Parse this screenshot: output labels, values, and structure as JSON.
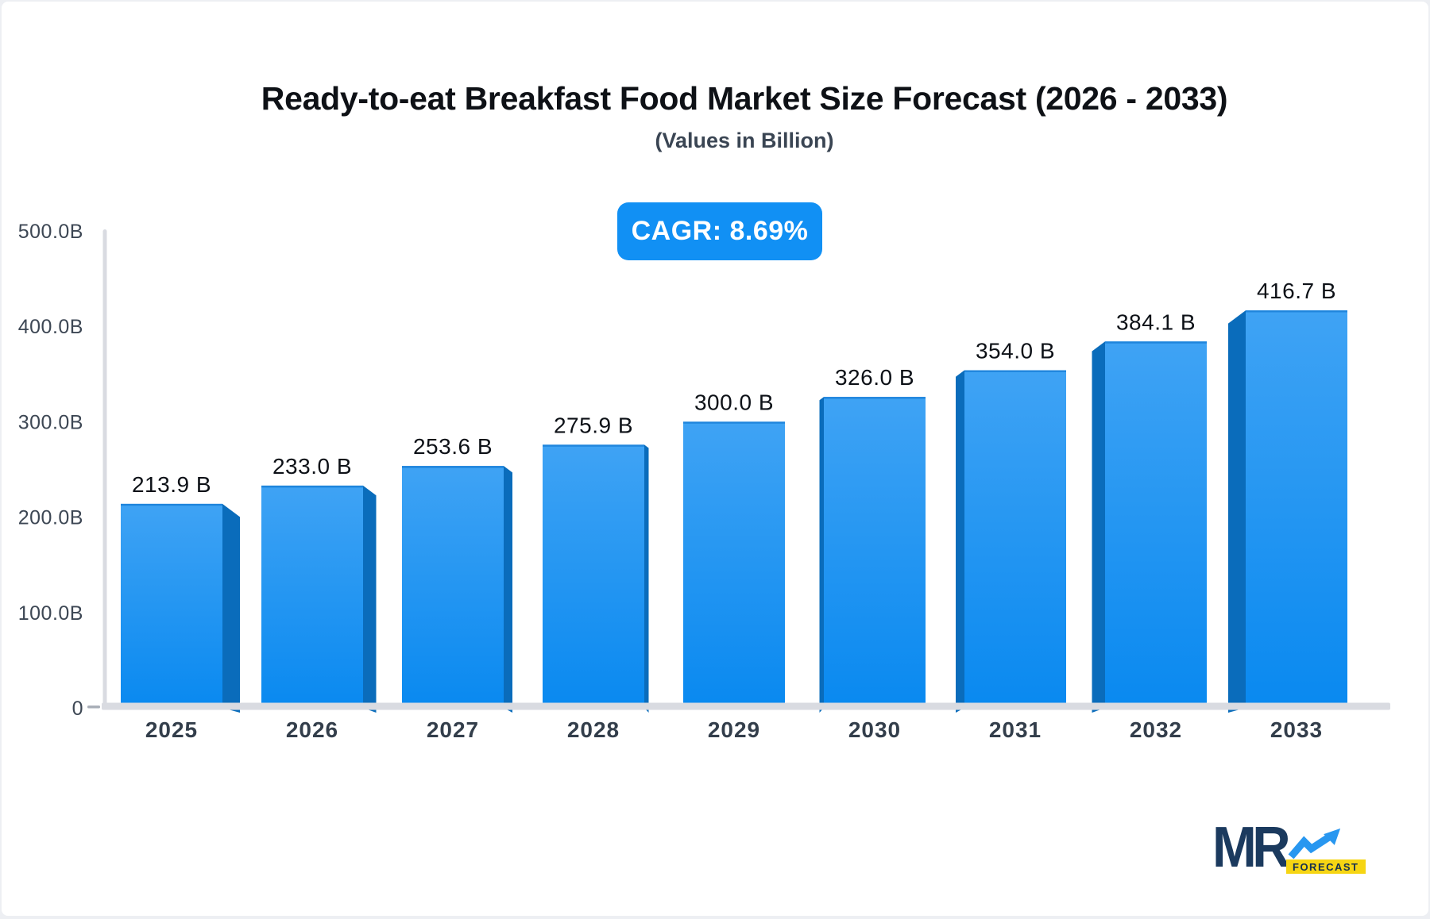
{
  "header": {
    "title": "Ready-to-eat Breakfast Food Market Size Forecast (2026 - 2033)",
    "subtitle": "(Values in Billion)"
  },
  "badge": {
    "label": "CAGR: 8.69%"
  },
  "chart_data": {
    "type": "bar",
    "title": "Ready-to-eat Breakfast Food Market Size Forecast (2026 - 2033)",
    "subtitle": "(Values in Billion)",
    "unit": "Billion",
    "cagr_percent": 8.69,
    "categories": [
      "2025",
      "2026",
      "2027",
      "2028",
      "2029",
      "2030",
      "2031",
      "2032",
      "2033"
    ],
    "values": [
      213.9,
      233.0,
      253.6,
      275.9,
      300.0,
      326.0,
      354.0,
      384.1,
      416.7
    ],
    "value_labels": [
      "213.9 B",
      "233.0 B",
      "253.6 B",
      "275.9 B",
      "300.0 B",
      "326.0 B",
      "354.0 B",
      "384.1 B",
      "416.7 B"
    ],
    "y_axis": {
      "ticks": [
        {
          "label": "500.0B",
          "value": 500
        },
        {
          "label": "400.0B",
          "value": 400
        },
        {
          "label": "300.0B",
          "value": 300
        },
        {
          "label": "200.0B",
          "value": 200
        },
        {
          "label": "100.0B",
          "value": 100
        },
        {
          "label": "0",
          "value": 0
        }
      ]
    },
    "ylim": [
      0,
      500
    ],
    "grid": false,
    "legend": "none",
    "bar_style": "3d-perspective-center",
    "colors": {
      "face_top": "#3fa3f4",
      "face_bottom": "#0989f0",
      "side": "#0a6cbb",
      "top_edge": "#1f85dc",
      "axis": "#d9dbe1",
      "zero_tick": "#a9afb8",
      "badge_bg": "#1190f4"
    }
  },
  "logo": {
    "text": "MR",
    "badge": "FORECAST"
  }
}
